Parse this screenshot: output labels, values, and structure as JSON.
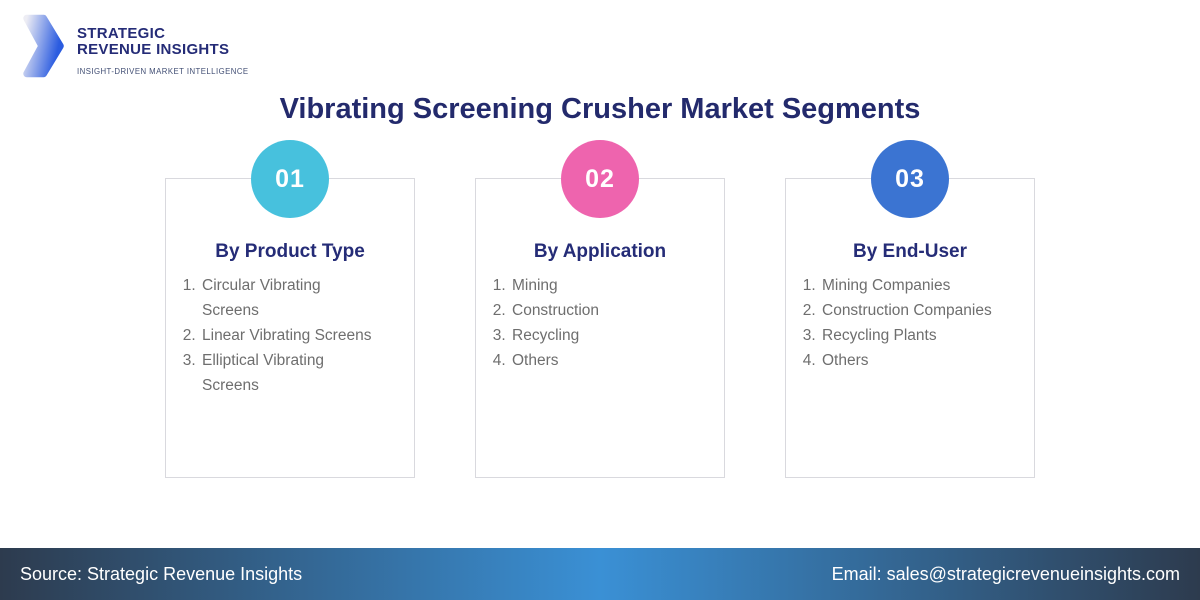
{
  "brand": {
    "name_line1": "STRATEGIC",
    "name_line2": "REVENUE INSIGHTS",
    "tagline": "INSIGHT-DRIVEN MARKET INTELLIGENCE"
  },
  "title": "Vibrating Screening Crusher Market Segments",
  "segments": [
    {
      "number": "01",
      "badge_color": "#47C1DD",
      "heading": "By Product Type",
      "items": [
        "Circular Vibrating Screens",
        "Linear Vibrating Screens",
        "Elliptical Vibrating Screens"
      ]
    },
    {
      "number": "02",
      "badge_color": "#EE64AE",
      "heading": "By Application",
      "items": [
        "Mining",
        "Construction",
        "Recycling",
        "Others"
      ]
    },
    {
      "number": "03",
      "badge_color": "#3B74D2",
      "heading": "By End-User",
      "items": [
        "Mining Companies",
        "Construction Companies",
        "Recycling Plants",
        "Others"
      ]
    }
  ],
  "footer": {
    "source": "Source: Strategic Revenue Insights",
    "email": "Email: sales@strategicrevenueinsights.com"
  },
  "colors": {
    "navy": "#252C77",
    "title-navy": "#232A6C",
    "text-gray": "#6e6e6e",
    "card-border": "#d9d9de",
    "footer-dark": "#2d3b4e",
    "footer-blue": "#3a90d5",
    "logo-grad-start": "#ededf4",
    "logo-grad-end": "#2b5ce0"
  }
}
